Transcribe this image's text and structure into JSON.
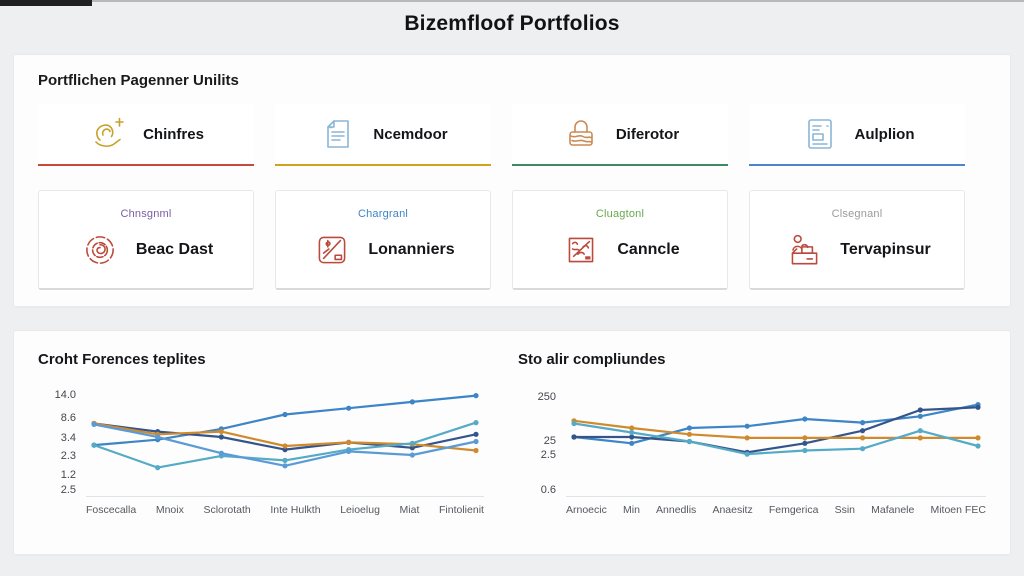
{
  "header": {
    "title": "Bizemfloof Portfolios"
  },
  "cards_panel": {
    "heading": "Portflichen Pagenner Unilits",
    "row1": [
      {
        "label": "Chinfres",
        "icon": "hand-plant-icon",
        "accent": "#c74a38"
      },
      {
        "label": "Ncemdoor",
        "icon": "document-icon",
        "accent": "#d0a31c"
      },
      {
        "label": "Diferotor",
        "icon": "lock-icon",
        "accent": "#3d8a63"
      },
      {
        "label": "Aulplion",
        "icon": "invoice-icon",
        "accent": "#4a86c8"
      }
    ],
    "row2": [
      {
        "caption": "Chnsgnml",
        "caption_color": "#7a5ea6",
        "label": "Beac Dast",
        "icon": "seal-icon"
      },
      {
        "caption": "Chargranl",
        "caption_color": "#3d85c6",
        "label": "Lonanniers",
        "icon": "chart-dollar-icon"
      },
      {
        "caption": "Cluagtonl",
        "caption_color": "#6aa84f",
        "label": "Canncle",
        "icon": "stamp-icon"
      },
      {
        "caption": "Clsegnanl",
        "caption_color": "#9a9a9a",
        "label": "Tervapinsur",
        "icon": "desk-person-icon"
      }
    ]
  },
  "chart_data": [
    {
      "type": "line",
      "title": "Croht Forences teplites",
      "xlabel": "",
      "ylabel": "",
      "ylim": [
        0,
        10
      ],
      "grid": false,
      "legend": "none",
      "yticks": [
        "14.0",
        "8.6",
        "3.4",
        "2.3",
        "1.2",
        "2.5"
      ],
      "categories": [
        "Foscecalla",
        "Mnoix",
        "Sclorotath",
        "Inte Hulkth",
        "Leioelug",
        "Miat",
        "Fintolienit"
      ],
      "series": [
        {
          "name": "series-1",
          "color": "#3d85c6",
          "values": [
            4.1,
            4.7,
            5.9,
            7.5,
            8.2,
            8.9,
            9.6
          ]
        },
        {
          "name": "series-2",
          "color": "#34558b",
          "values": [
            6.5,
            5.6,
            5.0,
            3.6,
            4.4,
            3.8,
            5.3
          ]
        },
        {
          "name": "series-3",
          "color": "#d08a2e",
          "values": [
            6.5,
            5.3,
            5.6,
            4.0,
            4.4,
            4.2,
            3.5
          ]
        },
        {
          "name": "series-4",
          "color": "#55aac6",
          "values": [
            4.1,
            1.6,
            2.9,
            2.4,
            3.6,
            4.3,
            6.6
          ]
        },
        {
          "name": "series-5",
          "color": "#5b9bd5",
          "values": [
            6.4,
            5.0,
            3.2,
            1.8,
            3.4,
            3.0,
            4.5
          ]
        }
      ]
    },
    {
      "type": "line",
      "title": "Sto alir compliundes",
      "xlabel": "",
      "ylabel": "",
      "ylim": [
        0,
        10
      ],
      "grid": false,
      "legend": "none",
      "yticks": [
        "250",
        "25",
        "2.5",
        "0.6"
      ],
      "categories": [
        "Arnoecic",
        "Min",
        "Annedlis",
        "Anaesitz",
        "Femgerica",
        "Ssin",
        "Mafanele",
        "Mitoen FEC"
      ],
      "series": [
        {
          "name": "series-1",
          "color": "#3d85c6",
          "values": [
            5.0,
            4.3,
            6.0,
            6.2,
            7.0,
            6.6,
            7.3,
            8.6
          ]
        },
        {
          "name": "series-2",
          "color": "#34558b",
          "values": [
            5.0,
            5.0,
            4.5,
            3.3,
            4.3,
            5.7,
            8.0,
            8.3
          ]
        },
        {
          "name": "series-3",
          "color": "#d08a2e",
          "values": [
            6.8,
            6.0,
            5.3,
            4.9,
            4.9,
            4.9,
            4.9,
            4.9
          ]
        },
        {
          "name": "series-4",
          "color": "#55aac6",
          "values": [
            6.5,
            5.5,
            4.5,
            3.1,
            3.5,
            3.7,
            5.7,
            4.0
          ]
        }
      ]
    }
  ]
}
